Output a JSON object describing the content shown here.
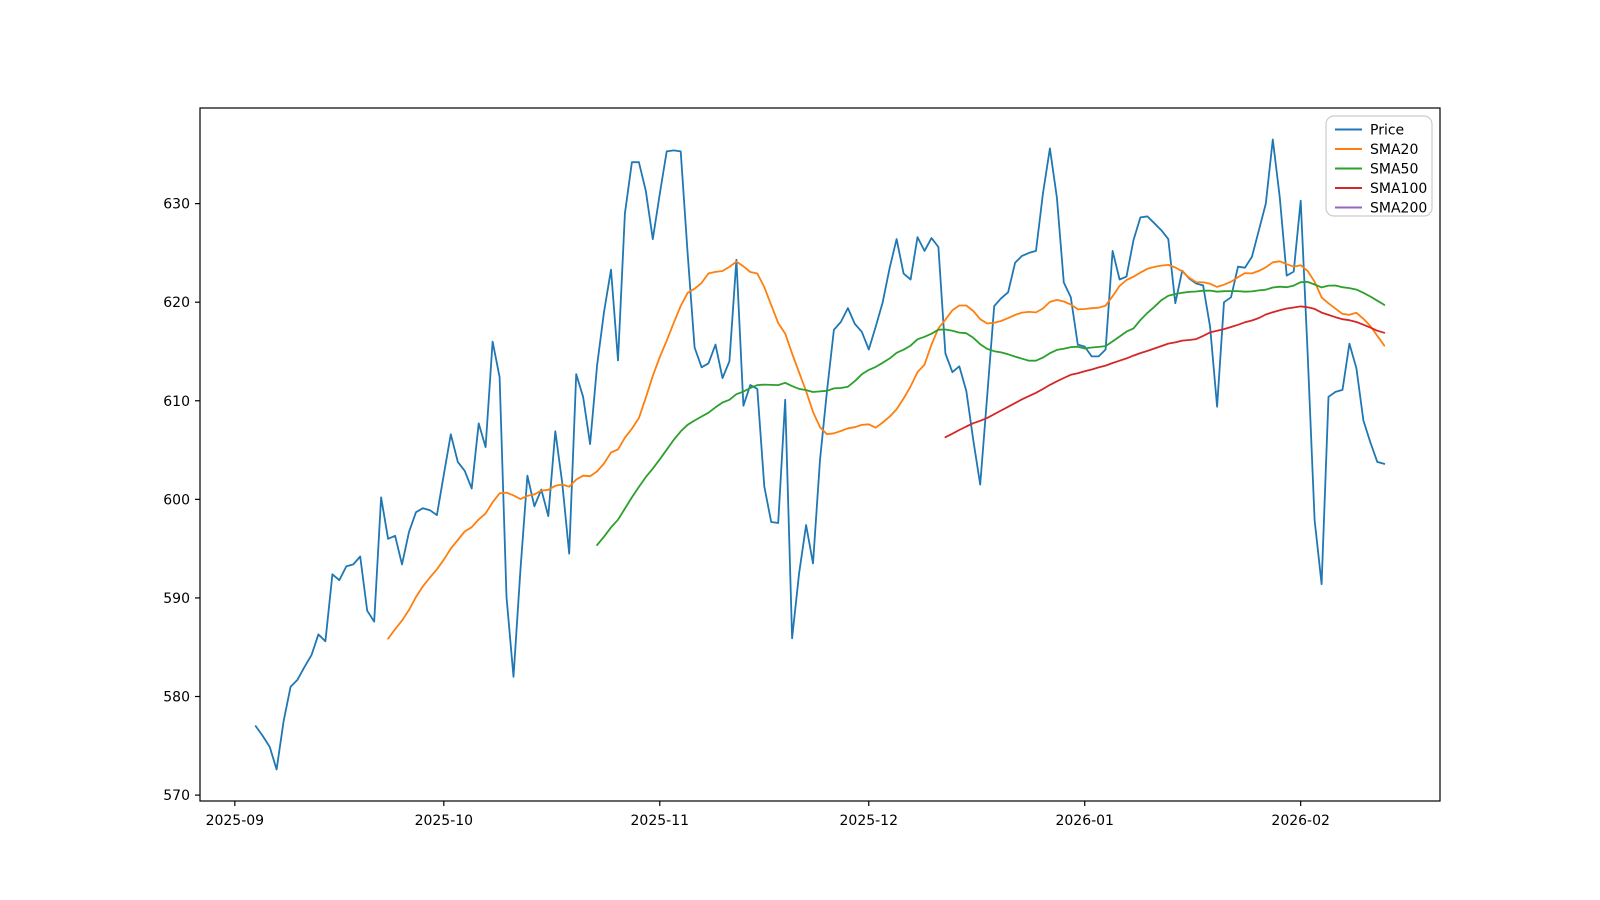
{
  "figure": {
    "background": "#ffffff"
  },
  "chart_data": {
    "type": "line",
    "title": "",
    "xlabel": "",
    "ylabel": "",
    "grid": false,
    "x_start_date": "2025-09-04",
    "x_step_days": 1,
    "xlim": [
      "2025-08-27",
      "2026-02-21"
    ],
    "ylim": [
      569.4,
      639.7
    ],
    "y_ticks": [
      570,
      580,
      590,
      600,
      610,
      620,
      630
    ],
    "x_ticks": [
      {
        "label": "2025-09",
        "date": "2025-09-01"
      },
      {
        "label": "2025-10",
        "date": "2025-10-01"
      },
      {
        "label": "2025-11",
        "date": "2025-11-01"
      },
      {
        "label": "2025-12",
        "date": "2025-12-01"
      },
      {
        "label": "2026-01",
        "date": "2026-01-01"
      },
      {
        "label": "2026-02",
        "date": "2026-02-01"
      }
    ],
    "legend": {
      "position": "upper right",
      "entries": [
        "Price",
        "SMA20",
        "SMA50",
        "SMA100",
        "SMA200"
      ]
    },
    "series": [
      {
        "name": "Price",
        "color": "#1f77b4",
        "kind": "raw",
        "values": [
          577.0,
          576.0,
          574.9,
          572.6,
          577.5,
          581.0,
          581.7,
          583.0,
          584.2,
          586.3,
          585.6,
          592.4,
          591.8,
          593.2,
          593.4,
          594.2,
          588.7,
          587.6,
          600.2,
          596.0,
          596.3,
          593.4,
          596.7,
          598.7,
          599.1,
          598.9,
          598.4,
          602.5,
          606.6,
          603.8,
          602.9,
          601.1,
          607.7,
          605.3,
          616.0,
          612.4,
          590.1,
          582.0,
          592.8,
          602.4,
          599.3,
          601.0,
          598.3,
          606.9,
          601.7,
          594.5,
          612.7,
          610.4,
          605.6,
          613.6,
          619.0,
          623.3,
          614.1,
          629.0,
          634.2,
          634.2,
          631.3,
          626.4,
          631.0,
          635.3,
          635.4,
          635.3,
          625.0,
          615.4,
          613.4,
          613.8,
          615.7,
          612.3,
          614.0,
          624.3,
          609.5,
          611.6,
          611.2,
          601.3,
          597.7,
          597.6,
          610.1,
          585.9,
          592.5,
          597.4,
          593.5,
          604.0,
          611.0,
          617.2,
          618.0,
          619.4,
          617.8,
          617.0,
          615.2,
          617.5,
          620.0,
          623.5,
          626.4,
          622.9,
          622.3,
          626.6,
          625.2,
          626.5,
          625.6,
          614.8,
          612.9,
          613.5,
          611.0,
          606.0,
          601.5,
          610.5,
          619.6,
          620.4,
          621.0,
          624.0,
          624.7,
          625.0,
          625.2,
          631.0,
          635.6,
          630.6,
          622.0,
          620.5,
          615.7,
          615.5,
          614.5,
          614.5,
          615.2,
          625.2,
          622.3,
          622.6,
          626.3,
          628.6,
          628.7,
          628.0,
          627.3,
          626.4,
          619.9,
          623.2,
          622.4,
          621.9,
          621.7,
          617.5,
          609.4,
          620.0,
          620.5,
          623.6,
          623.5,
          624.6,
          627.3,
          630.0,
          636.5,
          630.6,
          622.7,
          623.1,
          630.3,
          614.9,
          597.9,
          591.4,
          610.4,
          610.9,
          611.1,
          615.8,
          613.3,
          608.0,
          605.8,
          603.8,
          603.6
        ]
      },
      {
        "name": "SMA20",
        "color": "#ff7f0e",
        "kind": "sma",
        "window": 20
      },
      {
        "name": "SMA50",
        "color": "#2ca02c",
        "kind": "sma",
        "window": 50
      },
      {
        "name": "SMA100",
        "color": "#d62728",
        "kind": "sma",
        "window": 100
      },
      {
        "name": "SMA200",
        "color": "#9467bd",
        "kind": "sma",
        "window": 200
      }
    ]
  }
}
